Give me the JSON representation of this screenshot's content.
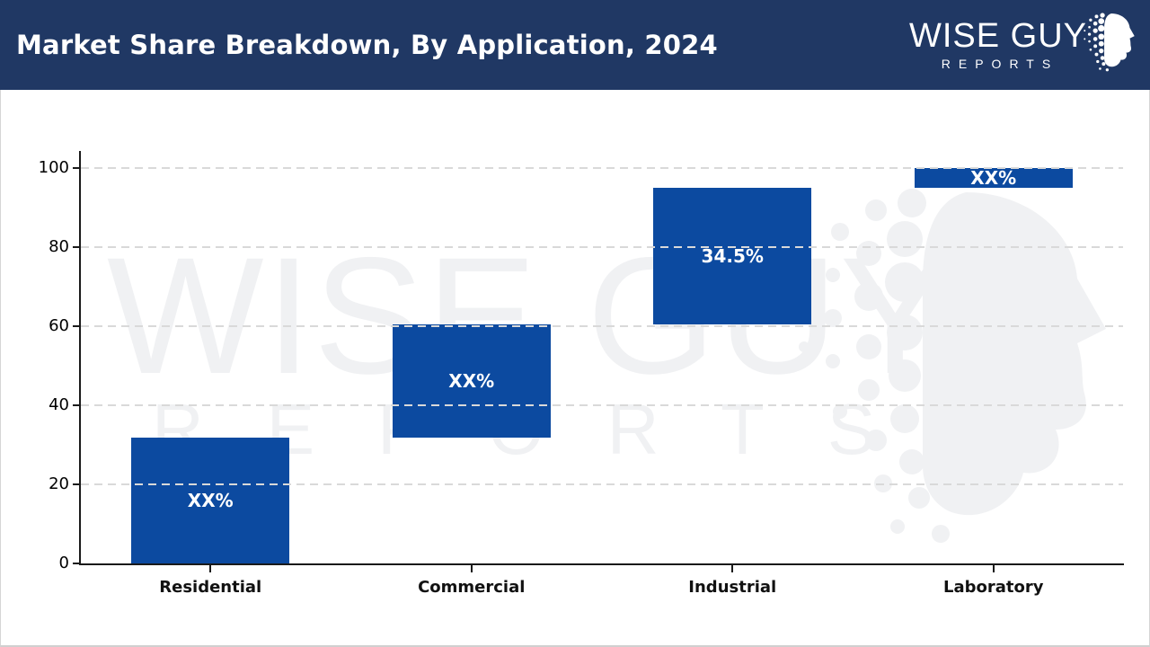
{
  "header": {
    "title": "Market Share Breakdown, By Application, 2024",
    "logo": {
      "line1": "WISE GUY",
      "line2": "REPORTS"
    }
  },
  "watermark": {
    "line1": "WISE GUY",
    "line2": "REPORTS"
  },
  "colors": {
    "header_bg": "#203864",
    "bar": "#0c4aa0",
    "grid": "#d9d9d9",
    "axis": "#1a1a1a",
    "bar_label_text": "#ffffff",
    "watermark": "#f0f1f3"
  },
  "chart_data": {
    "type": "bar",
    "subtype": "waterfall",
    "title": "Market Share Breakdown, By Application, 2024",
    "categories": [
      "Residential",
      "Commercial",
      "Industrial",
      "Laboratory"
    ],
    "series": [
      {
        "name": "Market Share",
        "ranges": [
          [
            0,
            31.8
          ],
          [
            31.8,
            60.4
          ],
          [
            60.4,
            94.9
          ],
          [
            94.9,
            100
          ]
        ],
        "segment_sizes": [
          31.8,
          28.6,
          34.5,
          5.1
        ]
      }
    ],
    "bar_labels": [
      "XX%",
      "XX%",
      "34.5%",
      "XX%"
    ],
    "xlabel": "",
    "ylabel": "",
    "ylim": [
      0,
      100
    ],
    "yticks": [
      0,
      20,
      40,
      60,
      80,
      100
    ],
    "grid": "dashed-horizontal",
    "legend": "none"
  }
}
